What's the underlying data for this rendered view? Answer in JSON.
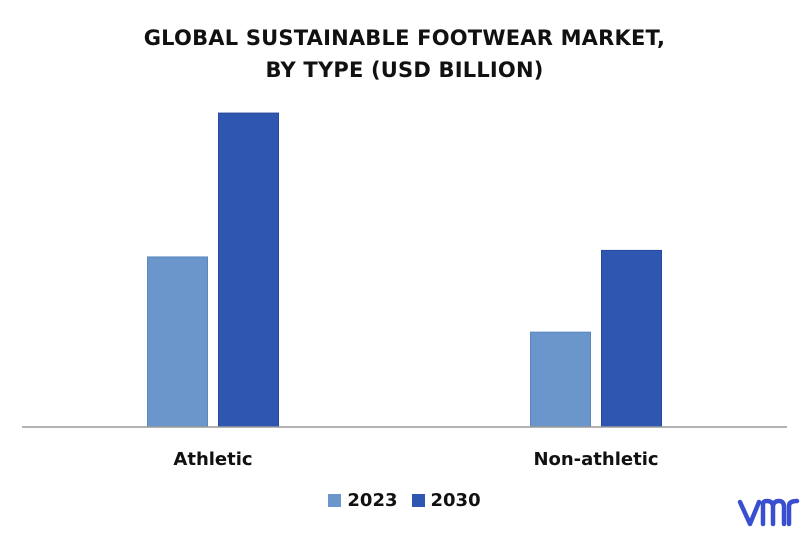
{
  "chart_data": {
    "type": "bar",
    "title": [
      "GLOBAL SUSTAINABLE FOOTWEAR MARKET,",
      "BY TYPE (USD BILLION)"
    ],
    "categories": [
      "Athletic",
      "Non-athletic"
    ],
    "series": [
      {
        "name": "2023",
        "values": [
          5.2,
          2.9
        ],
        "color": "#6b96cc"
      },
      {
        "name": "2030",
        "values": [
          9.6,
          5.4
        ],
        "color": "#2f56b0"
      }
    ],
    "ylim": [
      0,
      10
    ],
    "grid": false,
    "legend_position": "bottom-center"
  },
  "logo": {
    "text": "vmr",
    "color": "#3a4fd0"
  }
}
